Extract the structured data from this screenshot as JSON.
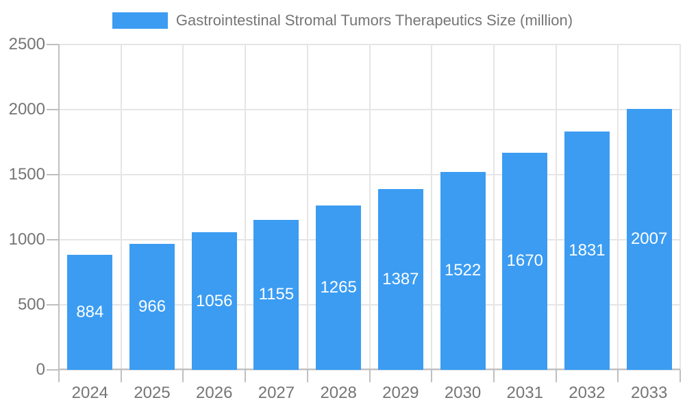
{
  "chart_data": {
    "type": "bar",
    "title": "Gastrointestinal Stromal Tumors Therapeutics Size (million)",
    "legend": {
      "position": "top",
      "label": "Gastrointestinal Stromal Tumors Therapeutics Size (million)"
    },
    "categories": [
      "2024",
      "2025",
      "2026",
      "2027",
      "2028",
      "2029",
      "2030",
      "2031",
      "2032",
      "2033"
    ],
    "values": [
      884,
      966,
      1056,
      1155,
      1265,
      1387,
      1522,
      1670,
      1831,
      2007
    ],
    "value_labels_position": "inside-center",
    "xlabel": "",
    "ylabel": "",
    "ylim": [
      0,
      2500
    ],
    "yticks": [
      0,
      500,
      1000,
      1500,
      2000,
      2500
    ],
    "grid": "both",
    "colors": {
      "bar": "#3B9CF2",
      "value_label": "#FFFFFF",
      "axis_text": "#757575",
      "legend_text": "#757575",
      "axis_line": "#BFBFBF",
      "gridline": "#E5E5E5",
      "background": "#FFFFFF"
    }
  }
}
